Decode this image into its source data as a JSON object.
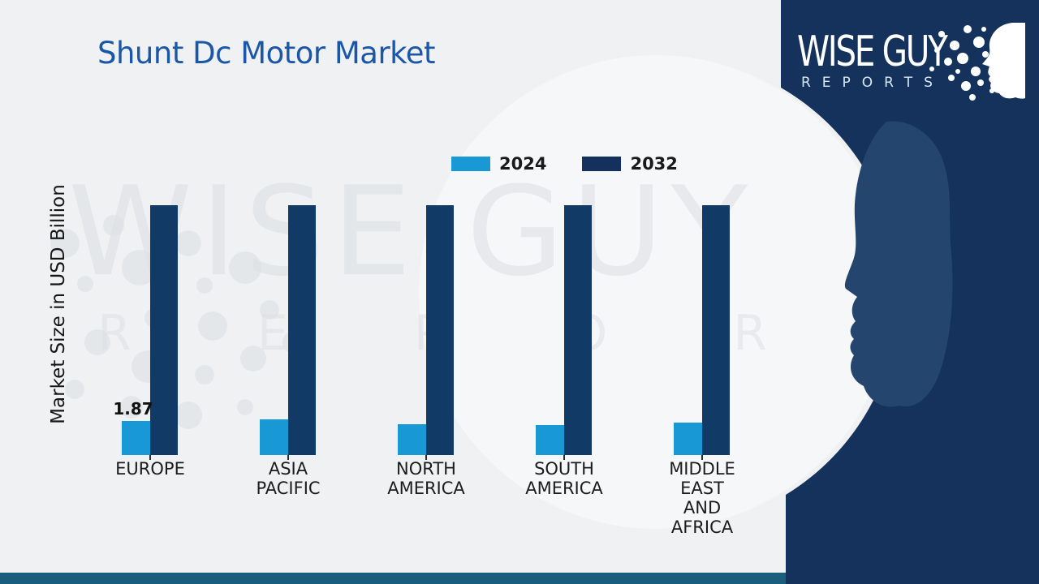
{
  "title": {
    "text": "Shunt Dc Motor Market"
  },
  "y_axis_label": "Market Size in USD Billion",
  "legend": {
    "items": [
      {
        "label": "2024",
        "color": "#1899d6"
      },
      {
        "label": "2032",
        "color": "#14315e"
      }
    ]
  },
  "logo": {
    "line1": "WISE GUY",
    "line2": "REPORTS"
  },
  "watermark": {
    "line1": "WISE GUY",
    "line2": "R E P O R T S"
  },
  "colors": {
    "background": "#f0f1f2",
    "title_blue": "#1b57a8",
    "bar_2024": "#1899d6",
    "bar_2032": "#123a66",
    "corner_navy": "#14325c",
    "inner_face_navy": "#24466e",
    "footer_teal": "#1a5e7d",
    "text_dark": "#1a1a1a",
    "watermark_gray": "#dcdfe4"
  },
  "chart_data": {
    "type": "bar",
    "title": "Shunt Dc Motor Market",
    "xlabel": "",
    "ylabel": "Market Size in USD Billion",
    "categories": [
      "EUROPE",
      "ASIA PACIFIC",
      "NORTH AMERICA",
      "SOUTH AMERICA",
      "MIDDLE EAST AND AFRICA"
    ],
    "category_label_lines": [
      [
        "EUROPE"
      ],
      [
        "ASIA",
        "PACIFIC"
      ],
      [
        "NORTH",
        "AMERICA"
      ],
      [
        "SOUTH",
        "AMERICA"
      ],
      [
        "MIDDLE",
        "EAST",
        "AND",
        "AFRICA"
      ]
    ],
    "series": [
      {
        "name": "2024",
        "color": "#1899d6",
        "values": [
          1.87,
          1.96,
          1.69,
          1.65,
          1.78
        ]
      },
      {
        "name": "2032",
        "color": "#123a66",
        "values": [
          13.7,
          13.7,
          13.7,
          13.7,
          13.7
        ]
      }
    ],
    "data_labels": [
      {
        "series": "2024",
        "category_index": 0,
        "text": "1.87"
      }
    ],
    "legend_position": "top-center",
    "grid": false,
    "ylim_visible": [
      0,
      13.7
    ],
    "notes": "Only the Europe 2024 value (1.87) is labeled in the image. Other 2024 values are estimated from bar heights; all 2032 bars are drawn at identical full height with no value labels."
  }
}
